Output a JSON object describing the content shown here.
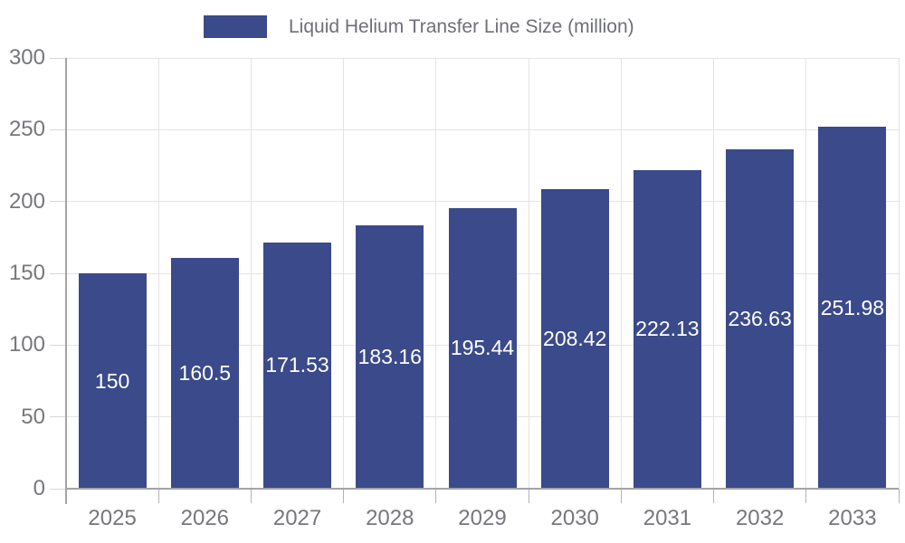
{
  "legend": {
    "label": "Liquid Helium Transfer Line Size (million)"
  },
  "colors": {
    "bar": "#3a4a8a",
    "background": "#ffffff",
    "grid_line": "#e4e4e9",
    "axis_line": "#a4a4a8",
    "x_tick": "#b4b4b8",
    "y_tick": "#d8d8dc",
    "axis_label": "#76777c",
    "legend_text": "#6e7076",
    "value_label": "#ffffff"
  },
  "chart_data": {
    "type": "bar",
    "title": "Liquid Helium Transfer Line Size (million)",
    "categories": [
      "2025",
      "2026",
      "2027",
      "2028",
      "2029",
      "2030",
      "2031",
      "2032",
      "2033"
    ],
    "series": [
      {
        "name": "Liquid Helium Transfer Line Size (million)",
        "values": [
          150,
          160.5,
          171.53,
          183.16,
          195.44,
          208.42,
          222.13,
          236.63,
          251.98
        ],
        "labels": [
          "150",
          "160.5",
          "171.53",
          "183.16",
          "195.44",
          "208.42",
          "222.13",
          "236.63",
          "251.98"
        ]
      }
    ],
    "xlabel": "",
    "ylabel": "",
    "ylim": [
      0,
      300
    ],
    "yticks": [
      0,
      50,
      100,
      150,
      200,
      250,
      300
    ],
    "grid": true,
    "legend_position": "top-center",
    "value_label_position": "inside-center"
  }
}
